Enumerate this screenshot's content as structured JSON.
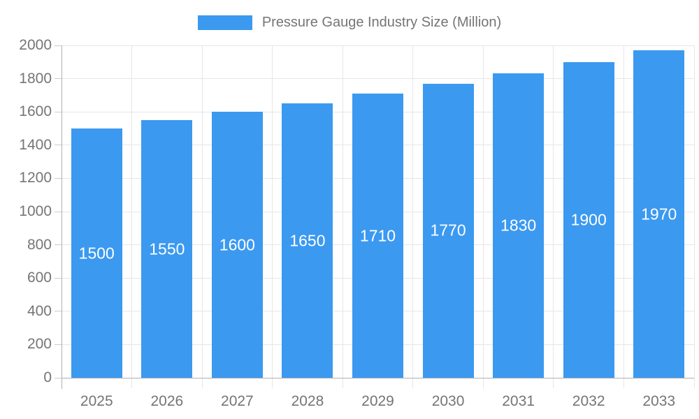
{
  "chart_data": {
    "type": "bar",
    "title": "",
    "legend": "Pressure Gauge Industry Size (Million)",
    "legend_position": "top",
    "categories": [
      "2025",
      "2026",
      "2027",
      "2028",
      "2029",
      "2030",
      "2031",
      "2032",
      "2033"
    ],
    "values": [
      1500,
      1550,
      1600,
      1650,
      1710,
      1770,
      1830,
      1900,
      1970
    ],
    "xlabel": "",
    "ylabel": "",
    "ylim": [
      0,
      2000
    ],
    "ytick_step": 200,
    "grid": "on",
    "bar_color": "#3b99f0",
    "value_label_color": "#ffffff",
    "axis_text_color": "#757575",
    "axis_line_color": "#b0b0b0",
    "grid_color": "#e6e6e6",
    "tick_color": "#cccccc"
  }
}
